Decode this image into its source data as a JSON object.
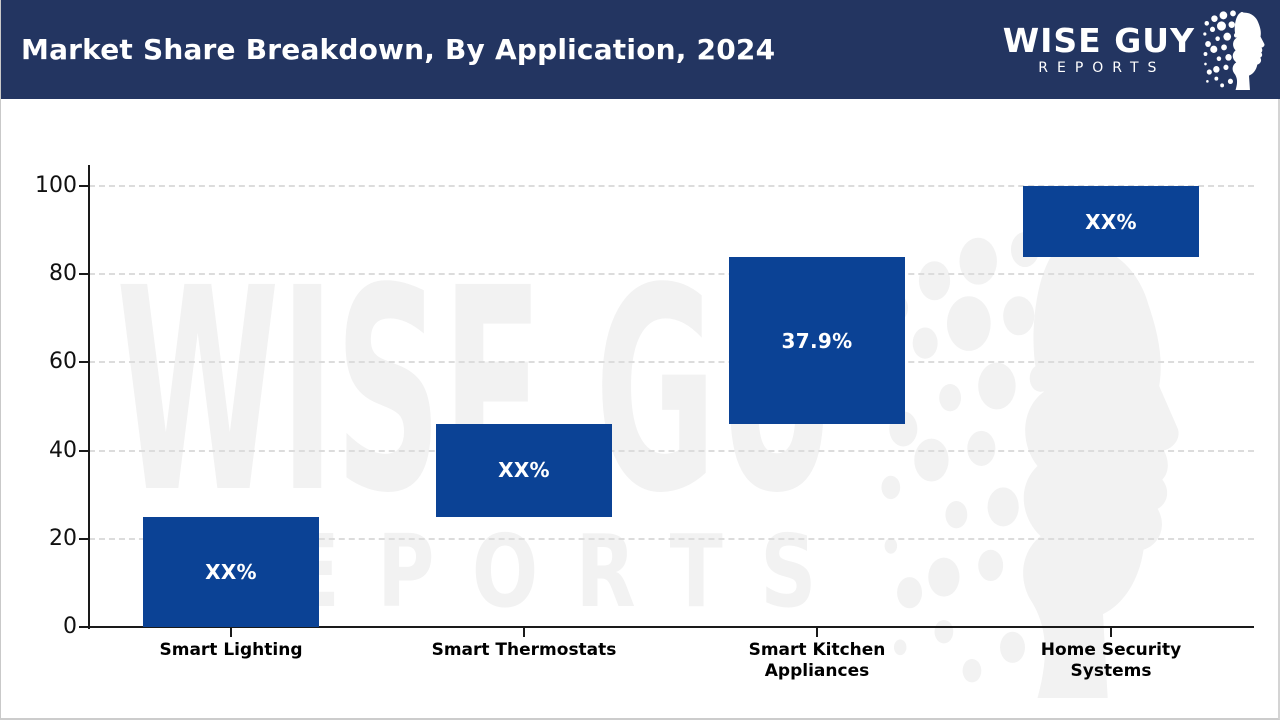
{
  "header": {
    "title": "Market Share Breakdown, By Application, 2024",
    "brand": {
      "name": "WISE GUY",
      "subtitle": "REPORTS",
      "icon": "head-profile-dots-icon"
    },
    "bg_color": "#233561",
    "text_color": "#ffffff"
  },
  "watermark": {
    "line1": "WISE GU",
    "line2": "REPORTS",
    "color": "#f2f2f2"
  },
  "chart_data": {
    "type": "bar",
    "subtype": "waterfall",
    "title": "Market Share Breakdown, By Application, 2024",
    "categories": [
      "Smart Lighting",
      "Smart Thermostats",
      "Smart Kitchen\nAppliances",
      "Home Security\nSystems"
    ],
    "segments": [
      {
        "category": "Smart Lighting",
        "start": 0,
        "end": 25,
        "value_label": "XX%"
      },
      {
        "category": "Smart Thermostats",
        "start": 25,
        "end": 46,
        "value_label": "XX%"
      },
      {
        "category": "Smart Kitchen Appliances",
        "start": 46,
        "end": 83.9,
        "value_label": "37.9%"
      },
      {
        "category": "Home Security Systems",
        "start": 83.9,
        "end": 100,
        "value_label": "XX%"
      }
    ],
    "y_ticks": [
      0,
      20,
      40,
      60,
      80,
      100
    ],
    "ylim": [
      0,
      104.5
    ],
    "xlabel": "",
    "ylabel": "",
    "bar_color": "#0b4295",
    "grid": "horizontal-dashed",
    "gridline_color": "#dcdcdc",
    "axis_color": "#1a1a1a",
    "legend": "none"
  }
}
